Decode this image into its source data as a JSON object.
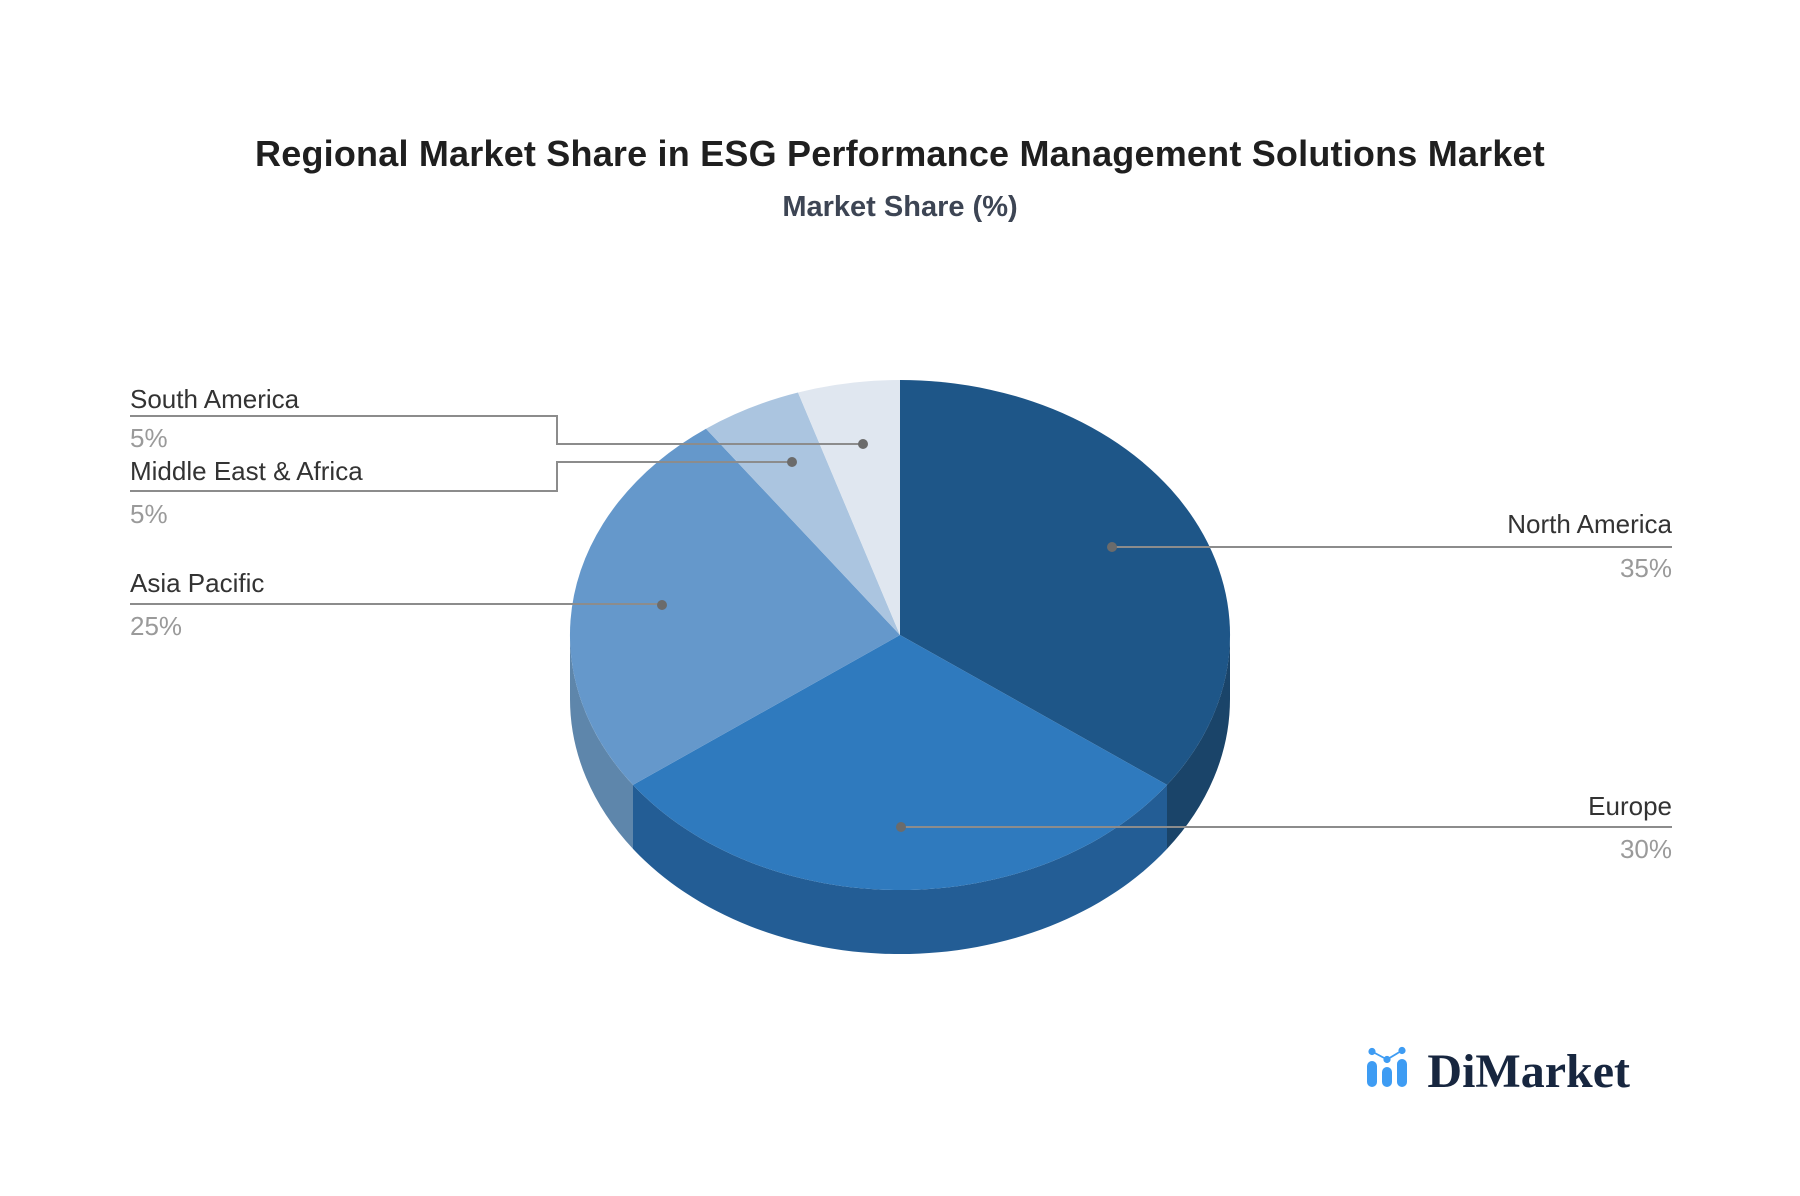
{
  "title": "Regional Market Share in ESG Performance Management Solutions Market",
  "subtitle": "Market Share (%)",
  "logo": {
    "text": "DiMarket",
    "icon": "bar-chart-icon",
    "icon_color": "#3E9CF3",
    "text_color": "#17263f"
  },
  "chart_data": {
    "type": "pie",
    "title": "Regional Market Share in ESG Performance Management Solutions Market",
    "subtitle": "Market Share (%)",
    "unit": "%",
    "effect": "3d",
    "start_angle_deg": 0,
    "direction": "clockwise",
    "legend_position": "none",
    "leader_line_color": "#8c8c8c",
    "leader_dot_color": "#6b6b6b",
    "label_color": "#333333",
    "value_color": "#9a9a9a",
    "slices": [
      {
        "label": "North America",
        "value": 35,
        "display": "35%",
        "color": "#1E5688",
        "side_color": "#1A4469",
        "label_side": "right"
      },
      {
        "label": "Europe",
        "value": 30,
        "display": "30%",
        "color": "#2F7ABE",
        "side_color": "#235D95",
        "label_side": "right"
      },
      {
        "label": "Asia Pacific",
        "value": 25,
        "display": "25%",
        "color": "#6598CB",
        "side_color": "#5E86AB",
        "label_side": "left"
      },
      {
        "label": "Middle East & Africa",
        "value": 5,
        "display": "5%",
        "color": "#ABC5E0",
        "side_color": "#8FA9C4",
        "label_side": "left"
      },
      {
        "label": "South America",
        "value": 5,
        "display": "5%",
        "color": "#E0E7F0",
        "side_color": "#BCC5D2",
        "label_side": "left"
      }
    ]
  }
}
